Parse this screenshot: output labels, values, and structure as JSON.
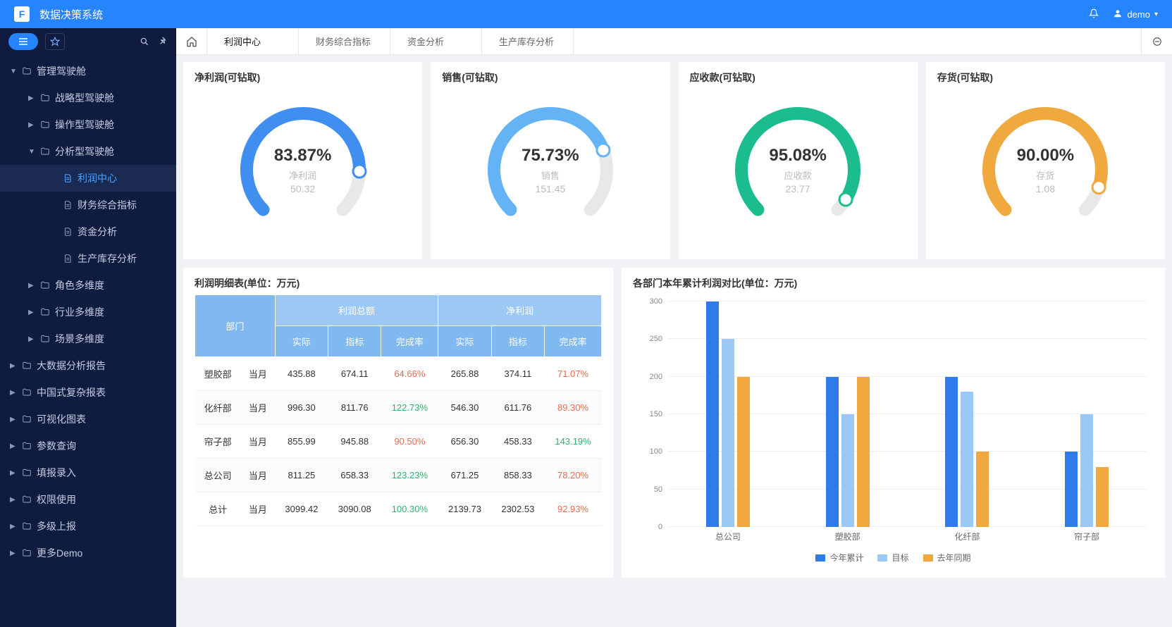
{
  "header": {
    "system_title": "数据决策系统",
    "user": "demo"
  },
  "side_controls": {
    "search_icon": "search-icon",
    "pin_icon": "pin-icon"
  },
  "tree": [
    {
      "lvl": 1,
      "caret": "▼",
      "icon": "folder",
      "label": "管理驾驶舱"
    },
    {
      "lvl": 2,
      "caret": "▶",
      "icon": "folder",
      "label": "战略型驾驶舱"
    },
    {
      "lvl": 2,
      "caret": "▶",
      "icon": "folder",
      "label": "操作型驾驶舱"
    },
    {
      "lvl": 2,
      "caret": "▼",
      "icon": "folder",
      "label": "分析型驾驶舱"
    },
    {
      "lvl": 3,
      "caret": "",
      "icon": "file",
      "label": "利润中心",
      "active": true
    },
    {
      "lvl": 3,
      "caret": "",
      "icon": "file",
      "label": "财务综合指标"
    },
    {
      "lvl": 3,
      "caret": "",
      "icon": "file",
      "label": "资金分析"
    },
    {
      "lvl": 3,
      "caret": "",
      "icon": "file",
      "label": "生产库存分析"
    },
    {
      "lvl": 2,
      "caret": "▶",
      "icon": "folder",
      "label": "角色多维度"
    },
    {
      "lvl": 2,
      "caret": "▶",
      "icon": "folder",
      "label": "行业多维度"
    },
    {
      "lvl": 2,
      "caret": "▶",
      "icon": "folder",
      "label": "场景多维度"
    },
    {
      "lvl": 1,
      "caret": "▶",
      "icon": "folder",
      "label": "大数据分析报告"
    },
    {
      "lvl": 1,
      "caret": "▶",
      "icon": "folder",
      "label": "中国式复杂报表"
    },
    {
      "lvl": 1,
      "caret": "▶",
      "icon": "folder",
      "label": "可视化图表"
    },
    {
      "lvl": 1,
      "caret": "▶",
      "icon": "folder",
      "label": "参数查询"
    },
    {
      "lvl": 1,
      "caret": "▶",
      "icon": "folder",
      "label": "填报录入"
    },
    {
      "lvl": 1,
      "caret": "▶",
      "icon": "folder",
      "label": "权限使用"
    },
    {
      "lvl": 1,
      "caret": "▶",
      "icon": "folder",
      "label": "多级上报"
    },
    {
      "lvl": 1,
      "caret": "▶",
      "icon": "folder",
      "label": "更多Demo"
    }
  ],
  "tabs": [
    {
      "label": "利润中心",
      "active": true
    },
    {
      "label": "财务综合指标"
    },
    {
      "label": "资金分析"
    },
    {
      "label": "生产库存分析"
    }
  ],
  "gauges": [
    {
      "title": "净利润(可钻取)",
      "pct": "83.87%",
      "pct_num": 83.87,
      "label": "净利润",
      "value": "50.32",
      "color": "#3f8ef0",
      "track": "#e8e8e8"
    },
    {
      "title": "销售(可钻取)",
      "pct": "75.73%",
      "pct_num": 75.73,
      "label": "销售",
      "value": "151.45",
      "color": "#63b3f5",
      "track": "#e8e8e8"
    },
    {
      "title": "应收款(可钻取)",
      "pct": "95.08%",
      "pct_num": 95.08,
      "label": "应收款",
      "value": "23.77",
      "color": "#1bbd8e",
      "track": "#e8e8e8"
    },
    {
      "title": "存货(可钻取)",
      "pct": "90.00%",
      "pct_num": 90.0,
      "label": "存货",
      "value": "1.08",
      "color": "#f0a93e",
      "track": "#e8e8e8"
    }
  ],
  "detail_table": {
    "title": "利润明细表(单位：万元)",
    "header": {
      "dept": "部门",
      "group1": "利润总额",
      "group2": "净利润",
      "cols": [
        "实际",
        "指标",
        "完成率",
        "实际",
        "指标",
        "完成率"
      ]
    },
    "rows": [
      {
        "dept": "塑胶部",
        "period": "当月",
        "a_act": "435.88",
        "a_tgt": "674.11",
        "a_rate": "64.66%",
        "a_dir": "down",
        "b_act": "265.88",
        "b_tgt": "374.11",
        "b_rate": "71.07%",
        "b_dir": "down"
      },
      {
        "dept": "化纤部",
        "period": "当月",
        "a_act": "996.30",
        "a_tgt": "811.76",
        "a_rate": "122.73%",
        "a_dir": "up",
        "b_act": "546.30",
        "b_tgt": "611.76",
        "b_rate": "89.30%",
        "b_dir": "down"
      },
      {
        "dept": "帘子部",
        "period": "当月",
        "a_act": "855.99",
        "a_tgt": "945.88",
        "a_rate": "90.50%",
        "a_dir": "down",
        "b_act": "656.30",
        "b_tgt": "458.33",
        "b_rate": "143.19%",
        "b_dir": "up"
      },
      {
        "dept": "总公司",
        "period": "当月",
        "a_act": "811.25",
        "a_tgt": "658.33",
        "a_rate": "123.23%",
        "a_dir": "up",
        "b_act": "671.25",
        "b_tgt": "858.33",
        "b_rate": "78.20%",
        "b_dir": "down"
      },
      {
        "dept": "总计",
        "period": "当月",
        "a_act": "3099.42",
        "a_tgt": "3090.08",
        "a_rate": "100.30%",
        "a_dir": "up",
        "b_act": "2139.73",
        "b_tgt": "2302.53",
        "b_rate": "92.93%",
        "b_dir": "down"
      }
    ]
  },
  "bar_chart": {
    "title": "各部门本年累计利润对比(单位：万元)",
    "y_max": 300,
    "y_ticks": [
      0,
      50,
      100,
      150,
      200,
      250,
      300
    ],
    "categories": [
      "总公司",
      "塑胶部",
      "化纤部",
      "帘子部"
    ],
    "series": [
      {
        "name": "今年累计",
        "color": "#2f7bea",
        "values": [
          300,
          200,
          200,
          100
        ]
      },
      {
        "name": "目标",
        "color": "#9ac8f7",
        "values": [
          250,
          150,
          180,
          150
        ]
      },
      {
        "name": "去年同期",
        "color": "#f0a93e",
        "values": [
          200,
          200,
          100,
          80
        ]
      }
    ]
  }
}
